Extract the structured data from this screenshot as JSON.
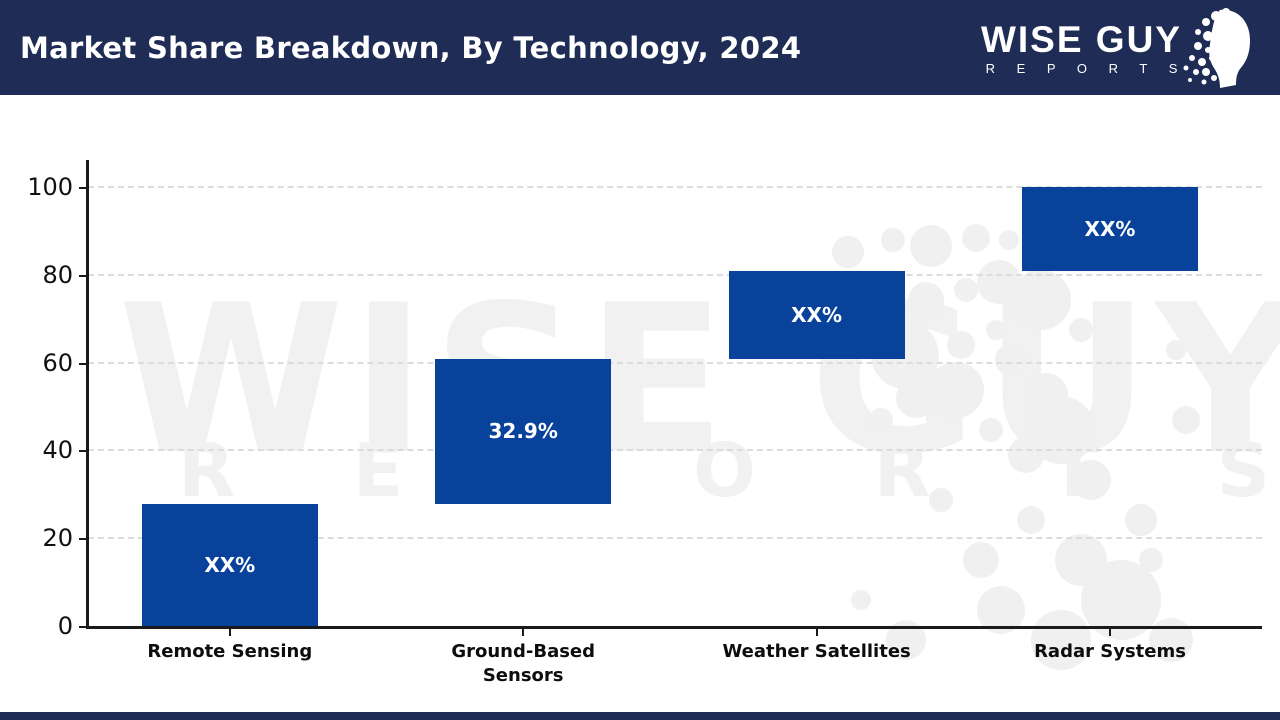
{
  "header": {
    "title": "Market Share Breakdown, By Technology, 2024",
    "bg_color": "#1f2c55",
    "logo": {
      "line1": "WISE GUY",
      "line2": "R E P O R T S"
    }
  },
  "watermark": {
    "line1": "WISE GUY",
    "line2": "R E P O R T S"
  },
  "footer": {
    "bg_color": "#1f2c55"
  },
  "chart_data": {
    "type": "bar",
    "subtype": "waterfall",
    "title": "Market Share Breakdown, By Technology, 2024",
    "categories": [
      "Remote Sensing",
      "Ground-Based\nSensors",
      "Weather Satellites",
      "Radar Systems"
    ],
    "segments": [
      {
        "from": 0,
        "to": 27.9
      },
      {
        "from": 27.9,
        "to": 60.8
      },
      {
        "from": 60.8,
        "to": 80.9
      },
      {
        "from": 80.9,
        "to": 100
      }
    ],
    "values": [
      27.9,
      32.9,
      20.1,
      19.1
    ],
    "bar_labels": [
      "XX%",
      "32.9%",
      "XX%",
      "XX%"
    ],
    "xlabel": "",
    "ylabel": "",
    "ylim": [
      0,
      100
    ],
    "yticks": [
      0,
      20,
      40,
      60,
      80,
      100
    ],
    "grid": "horizontal-dashed",
    "legend": "none",
    "bar_color": "#08429b",
    "bar_label_color": "#ffffff"
  }
}
